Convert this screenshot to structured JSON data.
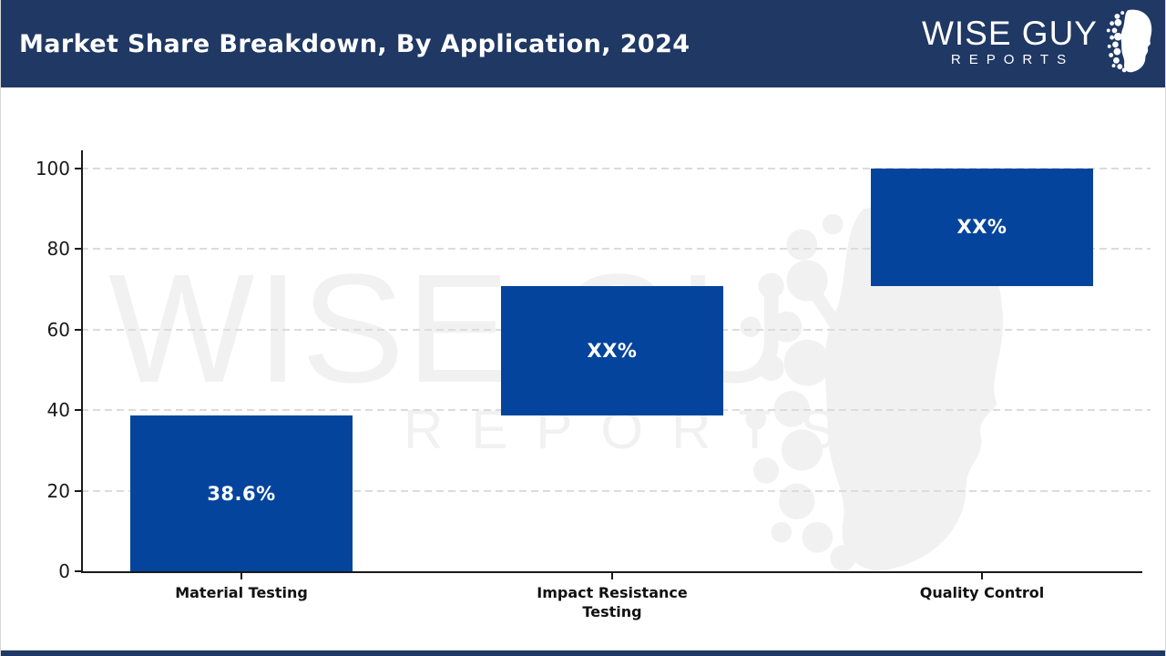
{
  "header": {
    "title": "Market Share Breakdown, By Application, 2024",
    "background_color": "#1f3864"
  },
  "logo": {
    "line1": "WISE GUY",
    "line2": "REPORTS",
    "icon": "wiseguy-face-icon"
  },
  "watermark": {
    "line1": "WISE GUY",
    "line2": "REPORTS"
  },
  "chart_data": {
    "type": "bar",
    "variant": "floating-range-segments",
    "title": "Market Share Breakdown, By Application, 2024",
    "categories": [
      "Material Testing",
      "Impact Resistance\nTesting",
      "Quality Control"
    ],
    "bars": [
      {
        "category": "Material Testing",
        "start": 0,
        "end": 38.6,
        "label": "38.6%"
      },
      {
        "category": "Impact Resistance\nTesting",
        "start": 38.6,
        "end": 70.9,
        "label": "XX%"
      },
      {
        "category": "Quality Control",
        "start": 70.9,
        "end": 100,
        "label": "XX%"
      }
    ],
    "yticks": [
      0,
      20,
      40,
      60,
      80,
      100
    ],
    "ylim": [
      0,
      104
    ],
    "grid": "dashed-horizontal",
    "legend": "none",
    "bar_color": "#04449c",
    "bar_label_color": "#ffffff",
    "axis_color": "#1a1a1a",
    "gridline_color": "#dcdcdc"
  },
  "colors": {
    "header_navy": "#1f3864",
    "bar_blue": "#04449c",
    "watermark_gray": "#f1f1f1",
    "footer_navy": "#1f3864"
  }
}
